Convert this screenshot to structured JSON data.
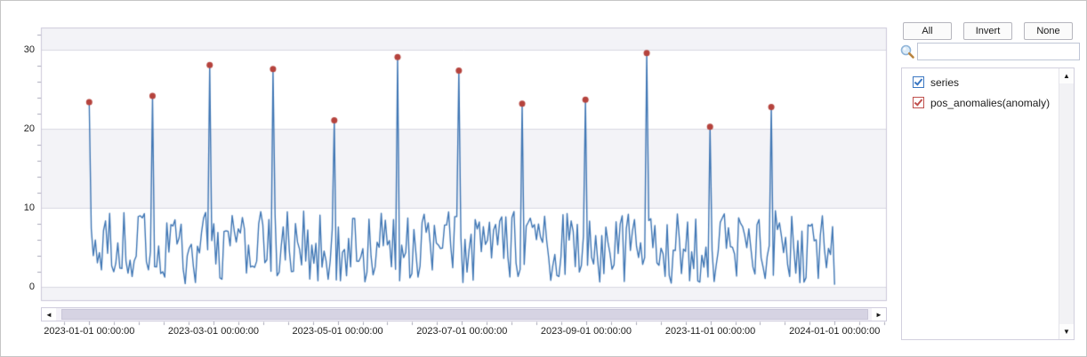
{
  "toolbar": {
    "buttons": [
      {
        "label": "All"
      },
      {
        "label": "Invert"
      },
      {
        "label": "None"
      }
    ]
  },
  "search": {
    "value": "",
    "placeholder": ""
  },
  "legend": {
    "items": [
      {
        "label": "series",
        "checked": true,
        "color": "#3a77c2"
      },
      {
        "label": "pos_anomalies(anomaly)",
        "checked": true,
        "color": "#c0504d"
      }
    ]
  },
  "colors": {
    "line": "#3f76b4",
    "anomaly_marker": "#b5433d",
    "band": "#f3f3f7",
    "gridline": "#d7d7e2",
    "plot_border": "#ccc9da",
    "tick": "#a8a8b8",
    "scrollbar_thumb": "#d6d3e3"
  },
  "chart_data": {
    "type": "line",
    "title": "",
    "xlabel": "",
    "ylabel": "",
    "x_tick_labels": [
      "2023-01-01 00:00:00",
      "2023-03-01 00:00:00",
      "2023-05-01 00:00:00",
      "2023-07-01 00:00:00",
      "2023-09-01 00:00:00",
      "2023-11-01 00:00:00",
      "2024-01-01 00:00:00"
    ],
    "y_ticks": [
      0,
      10,
      20,
      30
    ],
    "y_minor_tick_step": 2,
    "minor_ticks_per_major_x_interval": 5,
    "y_visible_range": [
      -1.7,
      32.8
    ],
    "grid": "horizontal-only",
    "background_bands": {
      "interval": 10,
      "color": "#f3f3f7",
      "gray_bands": [
        "-10..0",
        "10..20",
        "30..40"
      ]
    },
    "legend_position": "right-panel",
    "series": [
      {
        "name": "series",
        "type": "line",
        "color": "#3f76b4",
        "start_date": "2023-01-01",
        "end_date": "2024-01-01",
        "n_points": 366,
        "baseline_range": [
          0.4,
          9.7
        ],
        "noise_seed": 20,
        "last_value": 0.3,
        "description": "Noisy daily series oscillating between ~0 and ~10, with a one-day positive spike on the 1st of each month (spike tops marked by pos_anomalies)."
      },
      {
        "name": "pos_anomalies(anomaly)",
        "type": "scatter",
        "color": "#b5433d",
        "marker": "circle",
        "marker_radius_px": 3.5,
        "points": [
          {
            "date": "2023-01-01 00:00:00",
            "value": 23.4
          },
          {
            "date": "2023-02-01 00:00:00",
            "value": 24.2
          },
          {
            "date": "2023-03-01 00:00:00",
            "value": 28.1
          },
          {
            "date": "2023-04-01 00:00:00",
            "value": 27.6
          },
          {
            "date": "2023-05-01 00:00:00",
            "value": 21.1
          },
          {
            "date": "2023-06-01 00:00:00",
            "value": 29.1
          },
          {
            "date": "2023-07-01 00:00:00",
            "value": 27.4
          },
          {
            "date": "2023-08-01 00:00:00",
            "value": 23.2
          },
          {
            "date": "2023-09-01 00:00:00",
            "value": 23.7
          },
          {
            "date": "2023-10-01 00:00:00",
            "value": 29.6
          },
          {
            "date": "2023-11-01 00:00:00",
            "value": 20.3
          },
          {
            "date": "2023-12-01 00:00:00",
            "value": 22.8
          }
        ]
      }
    ]
  }
}
